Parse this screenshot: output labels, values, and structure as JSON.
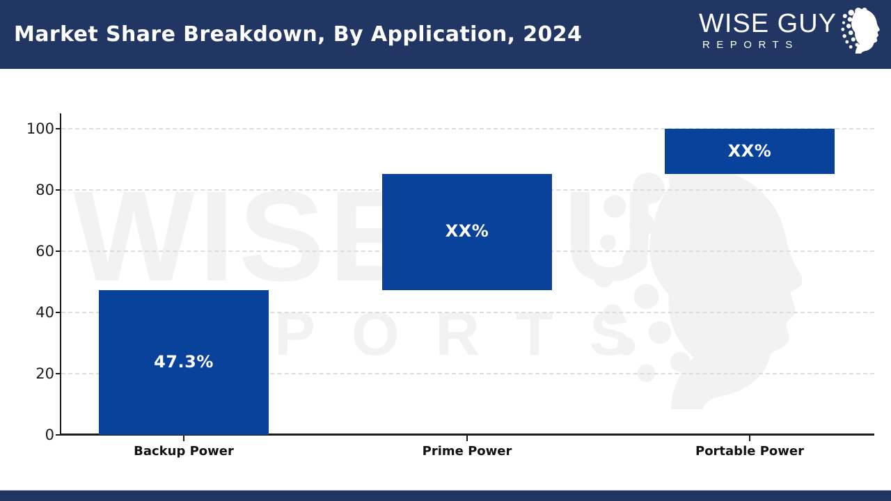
{
  "header": {
    "title": "Market Share Breakdown, By Application, 2024",
    "logo": {
      "line1": "WISE GUY",
      "line2": "REPORTS"
    }
  },
  "watermark": {
    "line1": "WISE GUY",
    "line2": "REPORTS"
  },
  "footer": {
    "text": ""
  },
  "chart_data": {
    "type": "bar",
    "subtype": "floating-waterfall",
    "title": "Market Share Breakdown, By Application, 2024",
    "categories": [
      "Backup Power",
      "Prime Power",
      "Portable Power"
    ],
    "series": [
      {
        "name": "Market share (%)",
        "segments": [
          {
            "category": "Backup Power",
            "from": 0,
            "to": 47.3,
            "label": "47.3%"
          },
          {
            "category": "Prime Power",
            "from": 47.3,
            "to": 85.2,
            "label": "XX%"
          },
          {
            "category": "Portable Power",
            "from": 85.2,
            "to": 100,
            "label": "XX%"
          }
        ]
      }
    ],
    "xlabel": "",
    "ylabel": "",
    "yticks": [
      0,
      20,
      40,
      60,
      80,
      100
    ],
    "ylim": [
      0,
      105
    ],
    "grid": "horizontal-dashed",
    "legend": "none",
    "colors": {
      "bar": "#08429b",
      "grid": "#dcdcdc",
      "axis": "#1a1a1a",
      "value_label": "#ffffff",
      "header_bg": "#213663",
      "watermark": "#f2f2f2"
    }
  }
}
